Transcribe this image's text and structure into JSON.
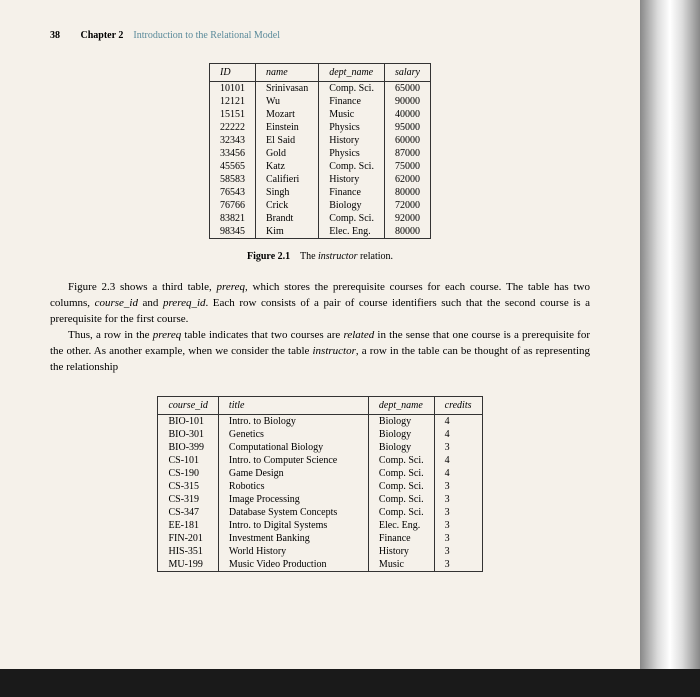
{
  "header": {
    "pageNumber": "38",
    "chapterLabel": "Chapter 2",
    "chapterTitle": "Introduction to the Relational Model"
  },
  "table1": {
    "headers": [
      "ID",
      "name",
      "dept_name",
      "salary"
    ],
    "rows": [
      [
        "10101",
        "Srinivasan",
        "Comp. Sci.",
        "65000"
      ],
      [
        "12121",
        "Wu",
        "Finance",
        "90000"
      ],
      [
        "15151",
        "Mozart",
        "Music",
        "40000"
      ],
      [
        "22222",
        "Einstein",
        "Physics",
        "95000"
      ],
      [
        "32343",
        "El Said",
        "History",
        "60000"
      ],
      [
        "33456",
        "Gold",
        "Physics",
        "87000"
      ],
      [
        "45565",
        "Katz",
        "Comp. Sci.",
        "75000"
      ],
      [
        "58583",
        "Califieri",
        "History",
        "62000"
      ],
      [
        "76543",
        "Singh",
        "Finance",
        "80000"
      ],
      [
        "76766",
        "Crick",
        "Biology",
        "72000"
      ],
      [
        "83821",
        "Brandt",
        "Comp. Sci.",
        "92000"
      ],
      [
        "98345",
        "Kim",
        "Elec. Eng.",
        "80000"
      ]
    ]
  },
  "caption1": {
    "label": "Figure 2.1",
    "pre": "The ",
    "em": "instructor",
    "post": " relation."
  },
  "paragraph": {
    "p1a": "Figure 2.3 shows a third table, ",
    "p1em1": "prereq",
    "p1b": ", which stores the prerequisite courses for each course. The table has two columns, ",
    "p1em2": "course_id",
    "p1c": " and ",
    "p1em3": "prereq_id",
    "p1d": ". Each row consists of a pair of course identifiers such that the second course is a prerequisite for the first course.",
    "p2a": "Thus, a row in the ",
    "p2em1": "prereq",
    "p2b": " table indicates that two courses are ",
    "p2em2": "related",
    "p2c": " in the sense that one course is a prerequisite for the other. As another example, when we consider the table ",
    "p2em3": "instructor",
    "p2d": ", a row in the table can be thought of as representing the relationship"
  },
  "table2": {
    "headers": [
      "course_id",
      "title",
      "dept_name",
      "credits"
    ],
    "rows": [
      [
        "BIO-101",
        "Intro. to Biology",
        "Biology",
        "4"
      ],
      [
        "BIO-301",
        "Genetics",
        "Biology",
        "4"
      ],
      [
        "BIO-399",
        "Computational Biology",
        "Biology",
        "3"
      ],
      [
        "CS-101",
        "Intro. to Computer Science",
        "Comp. Sci.",
        "4"
      ],
      [
        "CS-190",
        "Game Design",
        "Comp. Sci.",
        "4"
      ],
      [
        "CS-315",
        "Robotics",
        "Comp. Sci.",
        "3"
      ],
      [
        "CS-319",
        "Image Processing",
        "Comp. Sci.",
        "3"
      ],
      [
        "CS-347",
        "Database System Concepts",
        "Comp. Sci.",
        "3"
      ],
      [
        "EE-181",
        "Intro. to Digital Systems",
        "Elec. Eng.",
        "3"
      ],
      [
        "FIN-201",
        "Investment Banking",
        "Finance",
        "3"
      ],
      [
        "HIS-351",
        "World History",
        "History",
        "3"
      ],
      [
        "MU-199",
        "Music Video Production",
        "Music",
        "3"
      ]
    ]
  }
}
